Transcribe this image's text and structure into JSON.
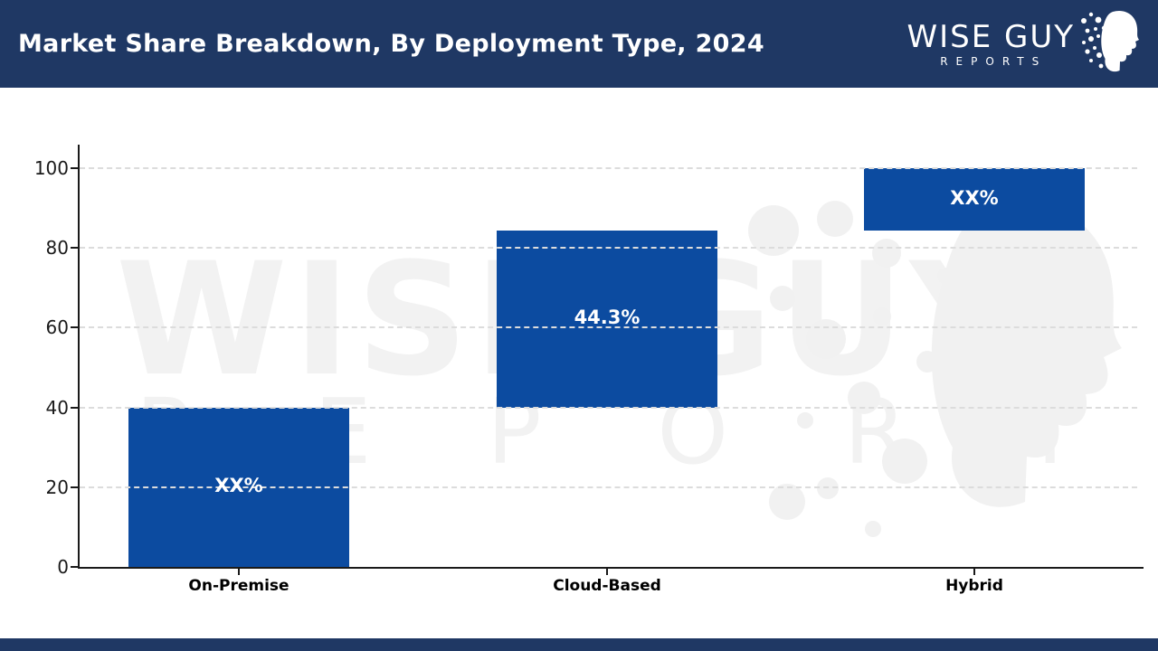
{
  "header": {
    "title": "Market Share Breakdown, By Deployment Type, 2024",
    "logo": {
      "name_line": "WISE GUY",
      "reports_line": "REPORTS"
    }
  },
  "watermark": {
    "line1": "WISE GUY",
    "line2": "R E P O R T S"
  },
  "chart_data": {
    "type": "bar",
    "variant": "floating-waterfall",
    "title": "Market Share Breakdown, By Deployment Type, 2024",
    "categories": [
      "On-Premise",
      "Cloud-Based",
      "Hybrid"
    ],
    "bars": [
      {
        "category": "On-Premise",
        "start": 0,
        "end": 40,
        "value_label": "XX%"
      },
      {
        "category": "Cloud-Based",
        "start": 40,
        "end": 84.3,
        "value_label": "44.3%"
      },
      {
        "category": "Hybrid",
        "start": 84.3,
        "end": 100,
        "value_label": "XX%"
      }
    ],
    "ylim": [
      0,
      100
    ],
    "yticks": [
      0,
      20,
      40,
      60,
      80,
      100
    ],
    "xlabel": "",
    "ylabel": "",
    "grid": "horizontal-dashed",
    "legend": "none"
  },
  "colors": {
    "header_bg": "#1F3864",
    "footer_bg": "#1F3864",
    "bar": "#0C4BA0",
    "grid": "#DCDCDC",
    "axis": "#1A1A1A",
    "watermark": "#F2F2F2"
  }
}
